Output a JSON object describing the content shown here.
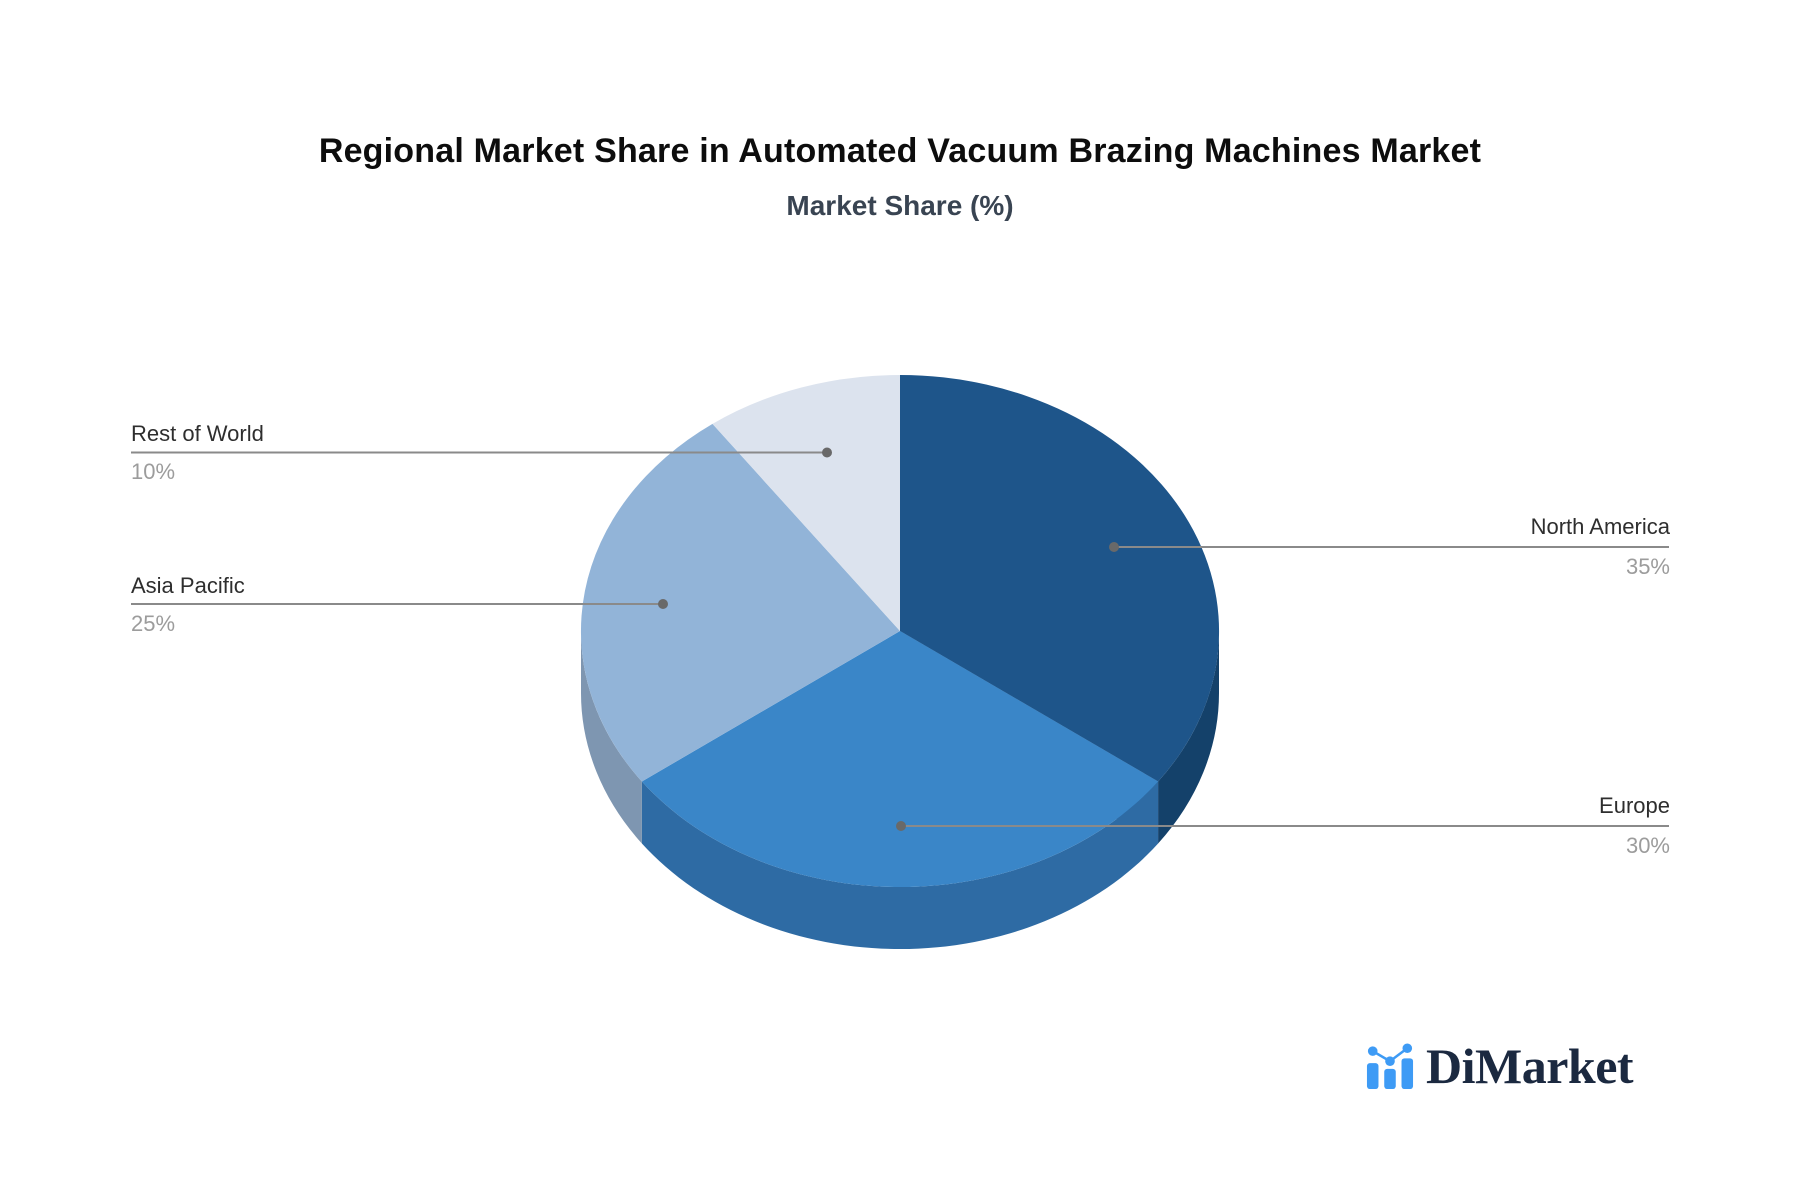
{
  "chart_data": {
    "type": "pie",
    "style": "3d",
    "title": "Regional Market Share in Automated Vacuum Brazing Machines Market",
    "subtitle": "Market Share (%)",
    "unit": "%",
    "start_angle_deg": 0,
    "direction": "clockwise",
    "legend_position": "callout-labels",
    "slices": [
      {
        "label": "North America",
        "value": 35,
        "display": "35%",
        "color": "#1e558a",
        "side_color": "#14416a",
        "edge_color": "#2b6295"
      },
      {
        "label": "Europe",
        "value": 30,
        "display": "30%",
        "color": "#3a86c8",
        "side_color": "#2e6ba4",
        "edge_color": "#2e6ba4"
      },
      {
        "label": "Asia Pacific",
        "value": 25,
        "display": "25%",
        "color": "#92b4d8",
        "side_color": "#7e96b1",
        "edge_color": "#7e96b1"
      },
      {
        "label": "Rest of World",
        "value": 10,
        "display": "10%",
        "color": "#dce3ee",
        "side_color": "#b9c4d6",
        "edge_color": "#b9c4d6"
      }
    ]
  },
  "colors": {
    "background": "#ffffff",
    "title_text": "#0d0d0d",
    "subtitle_text": "#394452",
    "label_text": "#2e2e2e",
    "value_text": "#9c9c9c",
    "connector_line": "#8a8a8a",
    "connector_dot": "#696969"
  },
  "branding": {
    "logo_text": "DiMarket",
    "logo_icon": "bar-line-chart-icon",
    "logo_icon_color": "#3e9bf5",
    "logo_text_color": "#1b2940"
  }
}
